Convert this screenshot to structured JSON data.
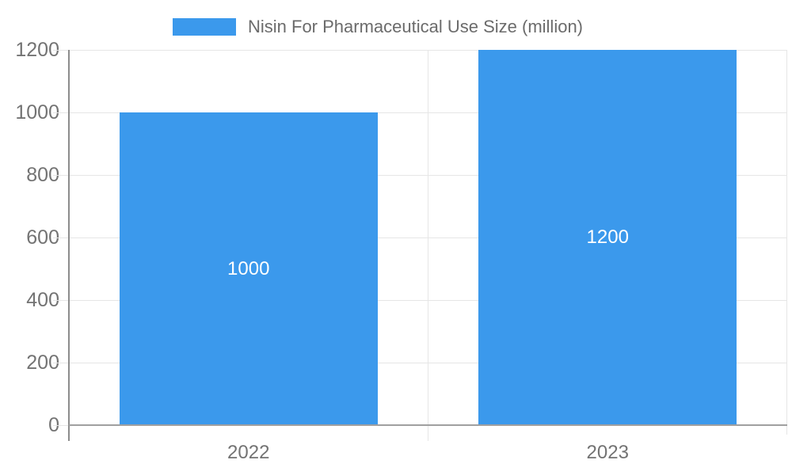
{
  "chart_data": {
    "type": "bar",
    "title": "Nisin For Pharmaceutical Use Size (million)",
    "legend": {
      "label": "Nisin For Pharmaceutical Use Size (million)",
      "position": "top"
    },
    "categories": [
      "2022",
      "2023"
    ],
    "series": [
      {
        "name": "Nisin For Pharmaceutical Use Size (million)",
        "values": [
          1000,
          1200
        ]
      }
    ],
    "bar_labels": [
      "1000",
      "1200"
    ],
    "xlabel": "",
    "ylabel": "",
    "ylim": [
      0,
      1200
    ],
    "yticks": [
      0,
      200,
      400,
      600,
      800,
      1000,
      1200
    ],
    "grid": true,
    "colors": {
      "bar": "#3b99ec",
      "grid": "#e6e6e6",
      "baseline": "#a0a0a0",
      "y_axis_line": "#8c8c8c",
      "tick_label": "#737373",
      "legend_text": "#6b6b6b",
      "value_label": "#ffffff",
      "background": "#ffffff"
    }
  }
}
